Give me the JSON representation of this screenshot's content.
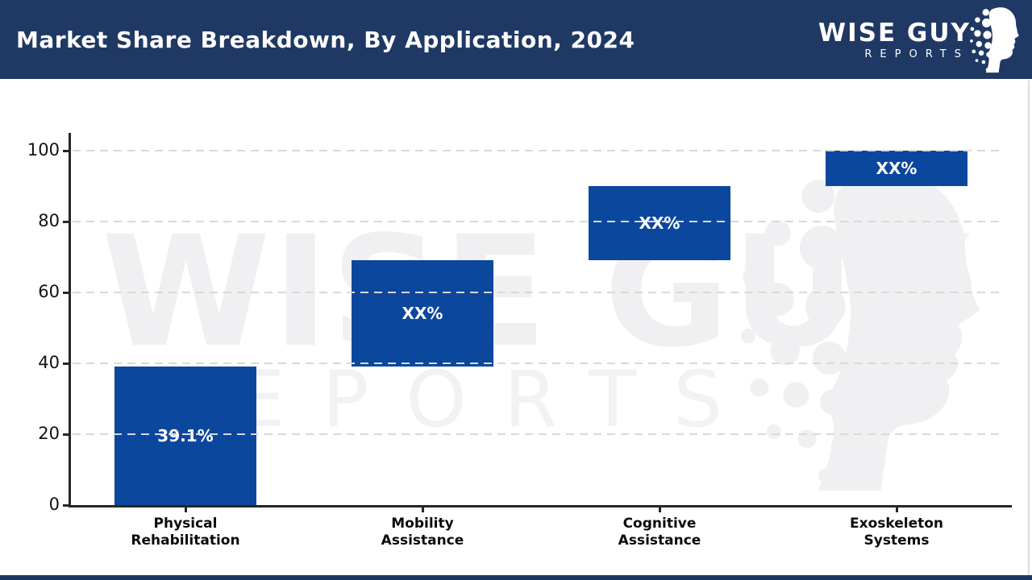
{
  "header": {
    "title": "Market Share Breakdown, By Application, 2024",
    "logo": {
      "brand_line1": "WISE GUY",
      "brand_line2": "REPORTS"
    }
  },
  "watermark": {
    "line1": "WISE GUY",
    "line2": "REPORTS"
  },
  "chart_data": {
    "type": "bar",
    "subtype": "waterfall",
    "title": "Market Share Breakdown, By Application, 2024",
    "categories": [
      "Physical Rehabilitation",
      "Mobility Assistance",
      "Cognitive Assistance",
      "Exoskeleton Systems"
    ],
    "category_lines": [
      [
        "Physical",
        "Rehabilitation"
      ],
      [
        "Mobility",
        "Assistance"
      ],
      [
        "Cognitive",
        "Assistance"
      ],
      [
        "Exoskeleton",
        "Systems"
      ]
    ],
    "segments": [
      {
        "category": "Physical Rehabilitation",
        "label": "39.1%",
        "start": 0,
        "end": 39.1
      },
      {
        "category": "Mobility Assistance",
        "label": "XX%",
        "start": 39.1,
        "end": 69.1
      },
      {
        "category": "Cognitive Assistance",
        "label": "XX%",
        "start": 69.1,
        "end": 90.1
      },
      {
        "category": "Exoskeleton Systems",
        "label": "XX%",
        "start": 90.1,
        "end": 100
      }
    ],
    "xlabel": "",
    "ylabel": "",
    "ylim": [
      0,
      100
    ],
    "yticks": [
      0,
      20,
      40,
      60,
      80,
      100
    ],
    "grid": "horizontal-dashed",
    "legend": "none",
    "colors": {
      "bar": "#0c479e",
      "header_bg": "#1f3964",
      "grid": "#d9d9d9",
      "axis": "#262626",
      "right_border": "#dcdcdc",
      "watermark": "#f0f0f2",
      "bar_label_text": "#ffffff",
      "tick_label_text": "#111111"
    }
  }
}
